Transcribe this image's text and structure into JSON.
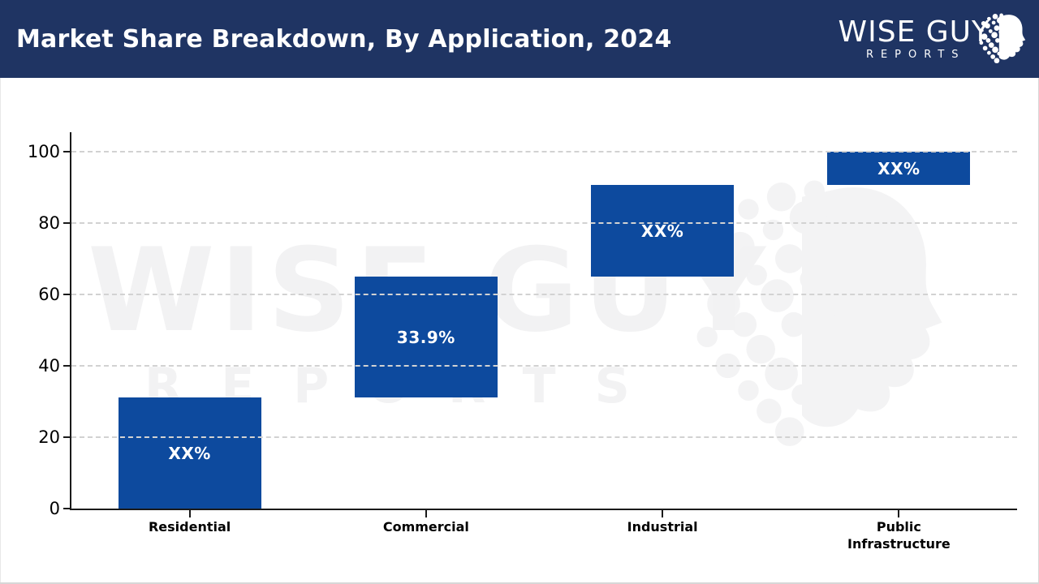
{
  "header": {
    "title": "Market Share Breakdown, By Application, 2024",
    "logo": {
      "line1": "WISE GUY",
      "line2": "REPORTS"
    }
  },
  "watermark": {
    "line1": "WISE GUY",
    "line2": "REPORTS"
  },
  "colors": {
    "header_bg": "#1f3463",
    "bar": "#0d4a9e",
    "bar_label": "#ffffff",
    "grid": "#d2d2d2",
    "axis": "#1a1a1a",
    "watermark": "#f2f2f3"
  },
  "chart_data": {
    "type": "bar",
    "subtype": "floating-waterfall",
    "title": "Market Share Breakdown, By Application, 2024",
    "xlabel": "",
    "ylabel": "",
    "ylim": [
      0,
      105
    ],
    "y_ticks": [
      0,
      20,
      40,
      60,
      80,
      100
    ],
    "grid": "horizontal-dashed",
    "legend": "none",
    "categories": [
      "Residential",
      "Commercial",
      "Industrial",
      "Public Infrastructure"
    ],
    "bars": [
      {
        "category": "Residential",
        "start": 0,
        "end": 31.1,
        "value": 31.1,
        "label": "XX%"
      },
      {
        "category": "Commercial",
        "start": 31.1,
        "end": 65.0,
        "value": 33.9,
        "label": "33.9%"
      },
      {
        "category": "Industrial",
        "start": 65.0,
        "end": 90.6,
        "value": 25.6,
        "label": "XX%"
      },
      {
        "category": "Public Infrastructure",
        "start": 90.6,
        "end": 100.0,
        "value": 9.4,
        "label": "XX%"
      }
    ]
  }
}
